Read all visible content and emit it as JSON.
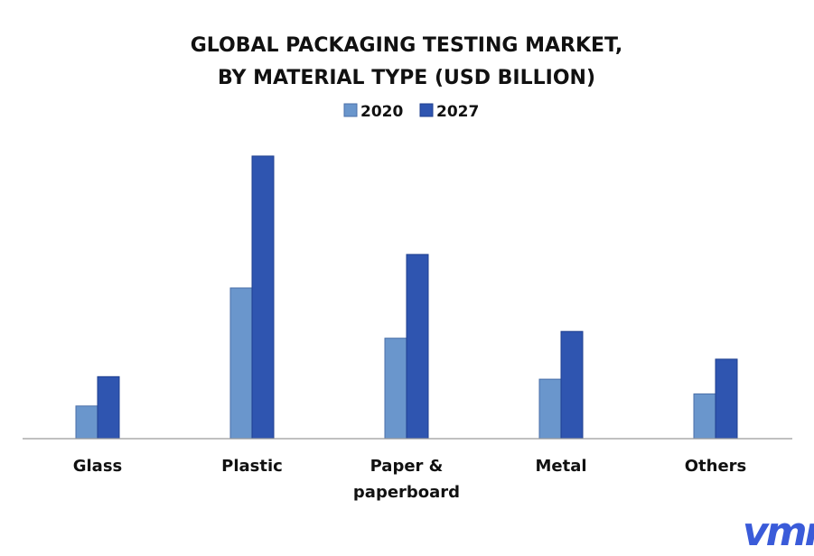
{
  "chart_data": {
    "type": "bar",
    "title_lines": [
      "GLOBAL PACKAGING TESTING MARKET,",
      "BY MATERIAL TYPE (USD BILLION)"
    ],
    "categories": [
      [
        "Glass"
      ],
      [
        "Plastic"
      ],
      [
        "Paper &",
        "paperboard"
      ],
      [
        "Metal"
      ],
      [
        "Others"
      ]
    ],
    "series": [
      {
        "name": "2020",
        "color": "#6a96cc",
        "values": [
          0.78,
          3.6,
          2.4,
          1.42,
          1.07
        ]
      },
      {
        "name": "2027",
        "color": "#2f55b0",
        "values": [
          1.48,
          6.75,
          4.4,
          2.56,
          1.9
        ]
      }
    ],
    "ylim": [
      0,
      7.2
    ],
    "grid": false,
    "legend_position": "top-center"
  },
  "brand": {
    "logo_text": "vmr",
    "logo_color": "#3a5bd9"
  }
}
